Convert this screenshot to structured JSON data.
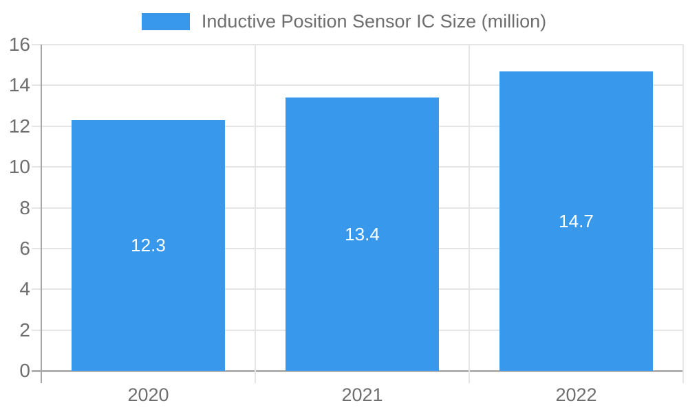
{
  "chart_data": {
    "type": "bar",
    "title": "Inductive Position Sensor IC Size (million)",
    "categories": [
      "2020",
      "2021",
      "2022"
    ],
    "values": [
      12.3,
      13.4,
      14.7
    ],
    "value_labels": [
      "12.3",
      "13.4",
      "14.7"
    ],
    "ytick_labels": [
      "0",
      "2",
      "4",
      "6",
      "8",
      "10",
      "12",
      "14",
      "16"
    ],
    "yticks": [
      0,
      2,
      4,
      6,
      8,
      10,
      12,
      14,
      16
    ],
    "ylim": [
      0,
      16
    ],
    "xlabel": "",
    "ylabel": "",
    "grid": true,
    "legend_position": "top-center",
    "bar_label_position": "center-inside"
  },
  "legend": {
    "label": "Inductive Position Sensor IC Size (million)"
  },
  "colors": {
    "bar": "#3898ec",
    "bar_value_text": "#ffffff",
    "axis_text": "#6e6e6e",
    "gridline": "#e5e5e5",
    "axis_line": "#a6a6a6",
    "zero_line": "#b0b0b0",
    "background": "#ffffff"
  }
}
